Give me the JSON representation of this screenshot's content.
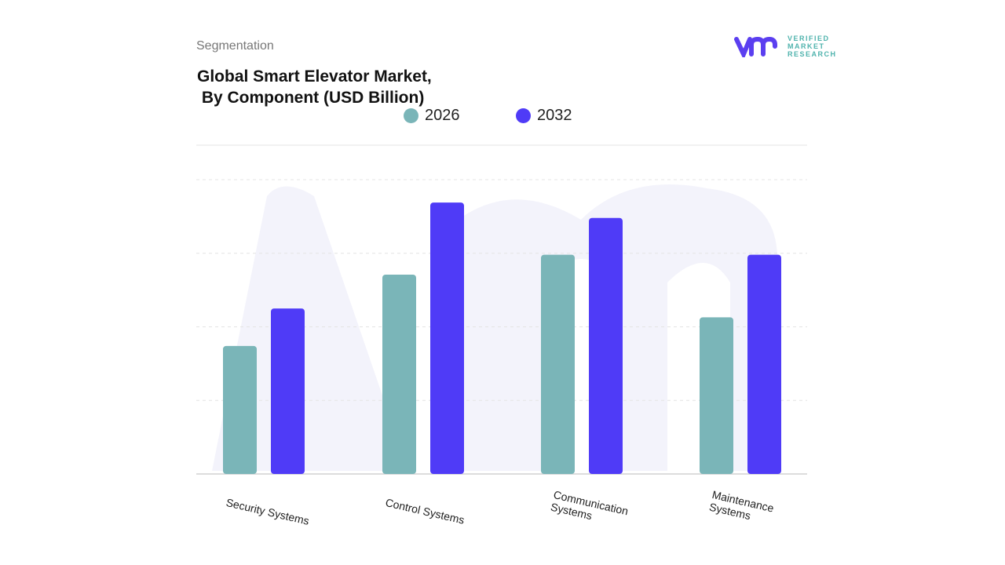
{
  "header": {
    "segmentation": "Segmentation",
    "title": "Global Smart Elevator Market,\n By Component (USD Billion)"
  },
  "logo": {
    "mark": "vmr",
    "text": [
      "VERIFIED",
      "MARKET",
      "RESEARCH"
    ],
    "color": "#5b3ff0"
  },
  "chart_data": {
    "type": "bar",
    "title": "Global Smart Elevator Market, By Component (USD Billion)",
    "categories": [
      "Security Systems",
      "Control Systems",
      "Communication\nSystems",
      "Maintenance\nSystems"
    ],
    "series": [
      {
        "name": "2026",
        "color": "#7ab5b8",
        "values": [
          1.74,
          2.71,
          2.98,
          2.13
        ]
      },
      {
        "name": "2032",
        "color": "#4f3bf7",
        "values": [
          2.25,
          3.69,
          3.48,
          2.98
        ]
      }
    ],
    "ylim": [
      0,
      4
    ],
    "grid": true,
    "legend": "top-center"
  }
}
